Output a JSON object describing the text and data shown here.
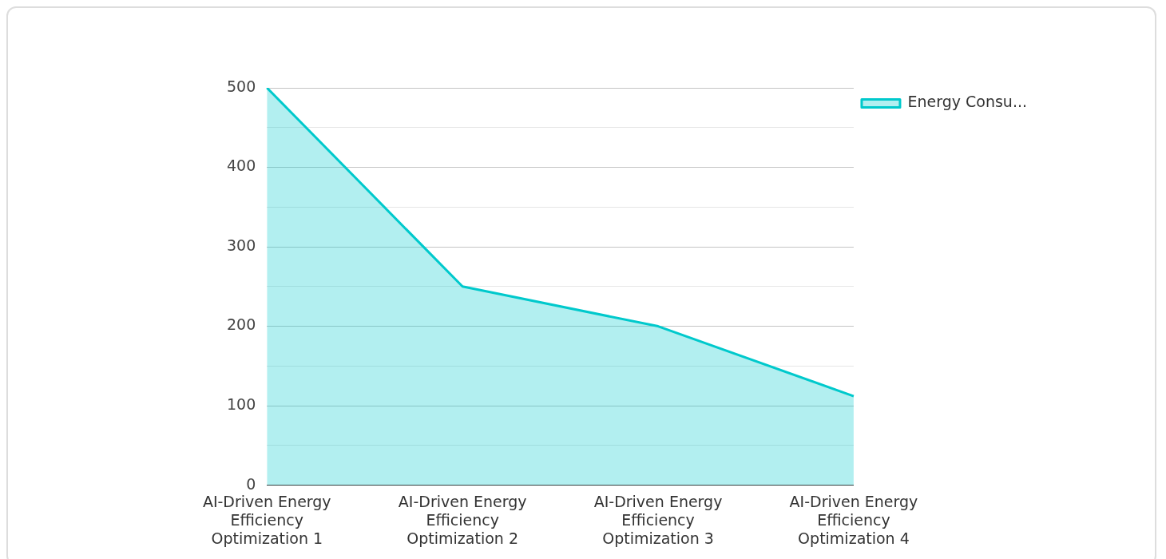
{
  "chart_data": {
    "type": "area",
    "categories": [
      "AI-Driven Energy Efficiency Optimization 1",
      "AI-Driven Energy Efficiency Optimization 2",
      "AI-Driven Energy Efficiency Optimization 3",
      "AI-Driven Energy Efficiency Optimization 4"
    ],
    "series": [
      {
        "name": "Energy Consu...",
        "color": "#00c9cc",
        "values": [
          500,
          250,
          200,
          112
        ]
      }
    ],
    "ylim": [
      0,
      500
    ],
    "yticks": [
      0,
      {
        "value": 50,
        "label": null
      },
      100,
      {
        "value": 150,
        "label": null
      },
      200,
      {
        "value": 250,
        "label": null
      },
      300,
      {
        "value": 350,
        "label": null
      },
      400,
      {
        "value": 450,
        "label": null
      },
      500
    ],
    "grid": "y",
    "legend": "top right"
  }
}
